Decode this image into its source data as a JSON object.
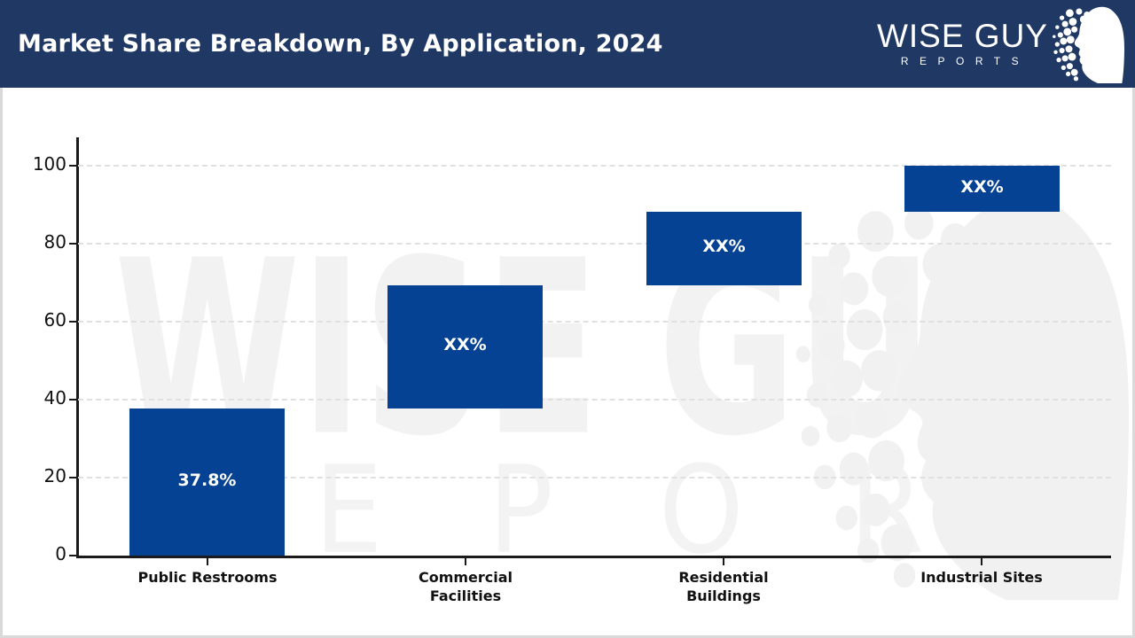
{
  "header": {
    "title": "Market Share Breakdown, By Application, 2024",
    "bg_color": "#203864",
    "brand": {
      "line1": "WISE GUY",
      "line2": "REPORTS"
    }
  },
  "watermark": {
    "line1": "WISE GUY",
    "line2": "R E P O R T S"
  },
  "colors": {
    "bar_blue": "#054294",
    "header_navy": "#203864",
    "gridline": "#e0e0e0",
    "watermark_gray": "#f2f2f2",
    "panel_border": "#d9d9d9"
  },
  "chart_data": {
    "type": "bar",
    "subtype": "floating-stacked-segments",
    "title": "Market Share Breakdown, By Application, 2024",
    "xlabel": "",
    "ylabel": "",
    "ylim": [
      0,
      107
    ],
    "yticks": [
      0,
      20,
      40,
      60,
      80,
      100
    ],
    "grid": "horizontal-dashed",
    "legend": "none",
    "bar_color": "#054294",
    "label_color": "#ffffff",
    "categories": [
      "Public Restrooms",
      "Commercial\nFacilities",
      "Residential\nBuildings",
      "Industrial Sites"
    ],
    "segments": [
      {
        "category": "Public Restrooms",
        "start": 0,
        "end": 37.8,
        "label": "37.8%"
      },
      {
        "category": "Commercial Facilities",
        "start": 37.8,
        "end": 69.3,
        "label": "XX%"
      },
      {
        "category": "Residential Buildings",
        "start": 69.3,
        "end": 88.2,
        "label": "XX%"
      },
      {
        "category": "Industrial Sites",
        "start": 88.2,
        "end": 100,
        "label": "XX%"
      }
    ]
  }
}
